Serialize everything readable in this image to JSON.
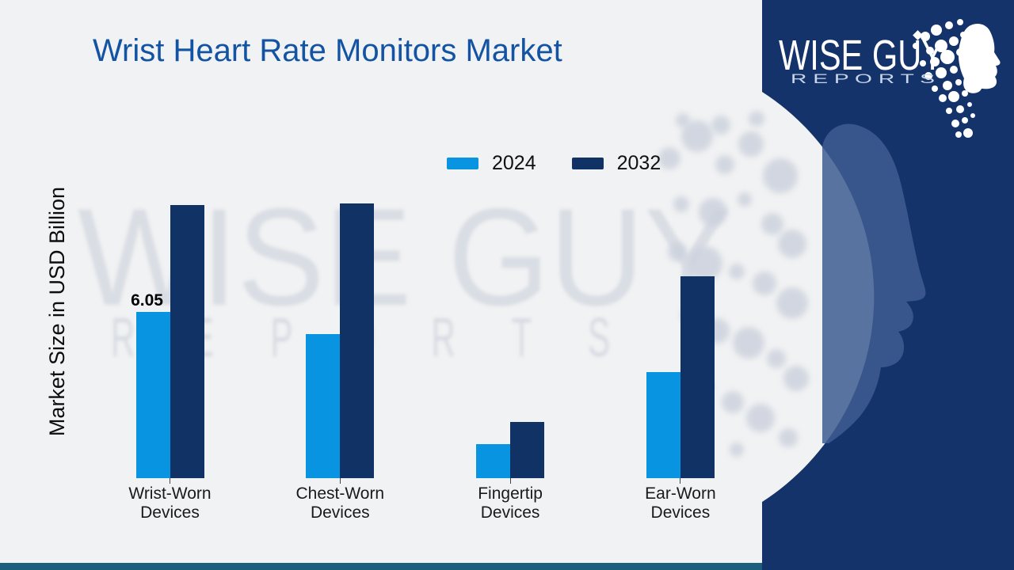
{
  "header": {
    "title": "Wrist Heart Rate Monitors Market"
  },
  "branding": {
    "logo_line1": "WISE GUY",
    "logo_line2": "R E P O R T S",
    "watermark_line1": "WISE GUY",
    "watermark_line2": "R E P O R T S"
  },
  "colors": {
    "series_2024": "#0894e0",
    "series_2032": "#113264",
    "title_blue": "#1353a3",
    "accent_strip": "#1c5e7d",
    "logo_background": "#14336a",
    "background": "#f1f2f3"
  },
  "chart_data": {
    "type": "bar",
    "title": "Wrist Heart Rate Monitors Market",
    "xlabel": "",
    "ylabel": "Market Size in USD Billion",
    "categories": [
      "Wrist-Worn Devices",
      "Chest-Worn Devices",
      "Fingertip Devices",
      "Ear-Worn Devices"
    ],
    "category_lines": [
      [
        "Wrist-Worn",
        "Devices"
      ],
      [
        "Chest-Worn",
        "Devices"
      ],
      [
        "Fingertip",
        "Devices"
      ],
      [
        "Ear-Worn",
        "Devices"
      ]
    ],
    "series": [
      {
        "name": "2024",
        "color": "#0894e0",
        "values": [
          6.05,
          5.25,
          1.25,
          3.85
        ]
      },
      {
        "name": "2032",
        "color": "#113264",
        "values": [
          9.95,
          10.0,
          2.05,
          7.35
        ]
      }
    ],
    "data_label": {
      "series": "2024",
      "category": "Wrist-Worn Devices",
      "category_index": 0,
      "text": "6.05"
    },
    "ylim": [
      0,
      10.5
    ],
    "grid": false,
    "legend_position": "top-center"
  }
}
